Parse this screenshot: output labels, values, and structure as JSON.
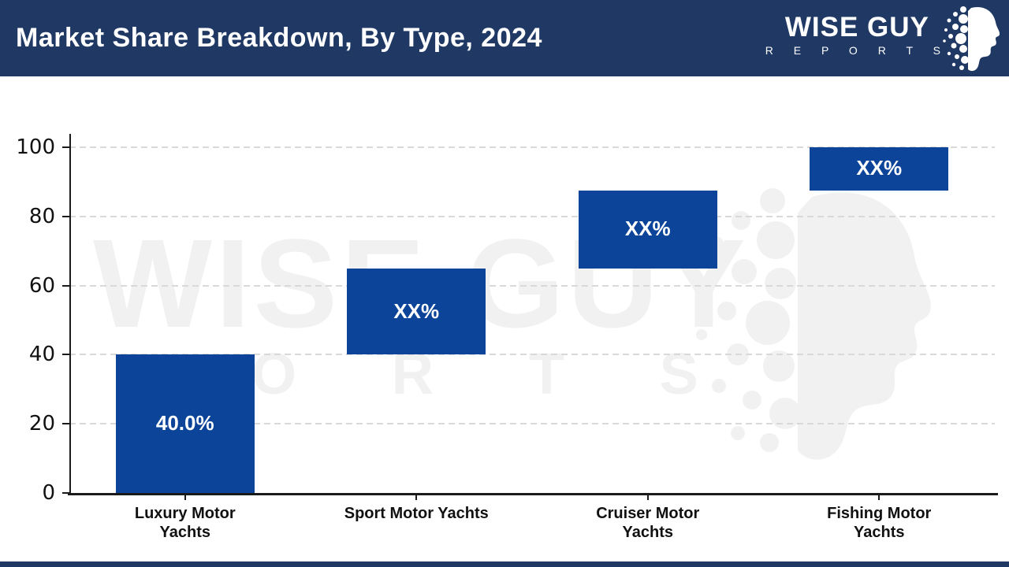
{
  "header": {
    "title": "Market Share Breakdown, By Type, 2024",
    "logo_line1": "WISE GUY",
    "logo_line2": "R E P O R T S",
    "bg_color": "#1f3864"
  },
  "watermark": {
    "line1": "WISE GUY",
    "line2": "P O R T S"
  },
  "chart_data": {
    "type": "bar",
    "subtype": "waterfall",
    "title": "Market Share Breakdown, By Type, 2024",
    "categories": [
      "Luxury Motor Yachts",
      "Sport Motor Yachts",
      "Cruiser Motor Yachts",
      "Fishing Motor Yachts"
    ],
    "category_label_lines": [
      [
        "Luxury Motor",
        "Yachts"
      ],
      [
        "Sport Motor Yachts"
      ],
      [
        "Cruiser Motor",
        "Yachts"
      ],
      [
        "Fishing Motor",
        "Yachts"
      ]
    ],
    "series": [
      {
        "name": "Market Share",
        "segments": [
          {
            "category": "Luxury Motor Yachts",
            "start": 0,
            "end": 40,
            "value": 40,
            "label": "40.0%"
          },
          {
            "category": "Sport Motor Yachts",
            "start": 40,
            "end": 65,
            "value": 25,
            "label": "XX%"
          },
          {
            "category": "Cruiser Motor Yachts",
            "start": 65,
            "end": 87.5,
            "value": 22.5,
            "label": "XX%"
          },
          {
            "category": "Fishing Motor Yachts",
            "start": 87.5,
            "end": 100,
            "value": 12.5,
            "label": "XX%"
          }
        ]
      }
    ],
    "ylim": [
      0,
      100
    ],
    "yticks": [
      0,
      20,
      40,
      60,
      80,
      100
    ],
    "xlabel": "",
    "ylabel": "",
    "grid": "horizontal-dashed",
    "legend": "none",
    "bar_color": "#0b4499",
    "label_color": "#ffffff"
  }
}
